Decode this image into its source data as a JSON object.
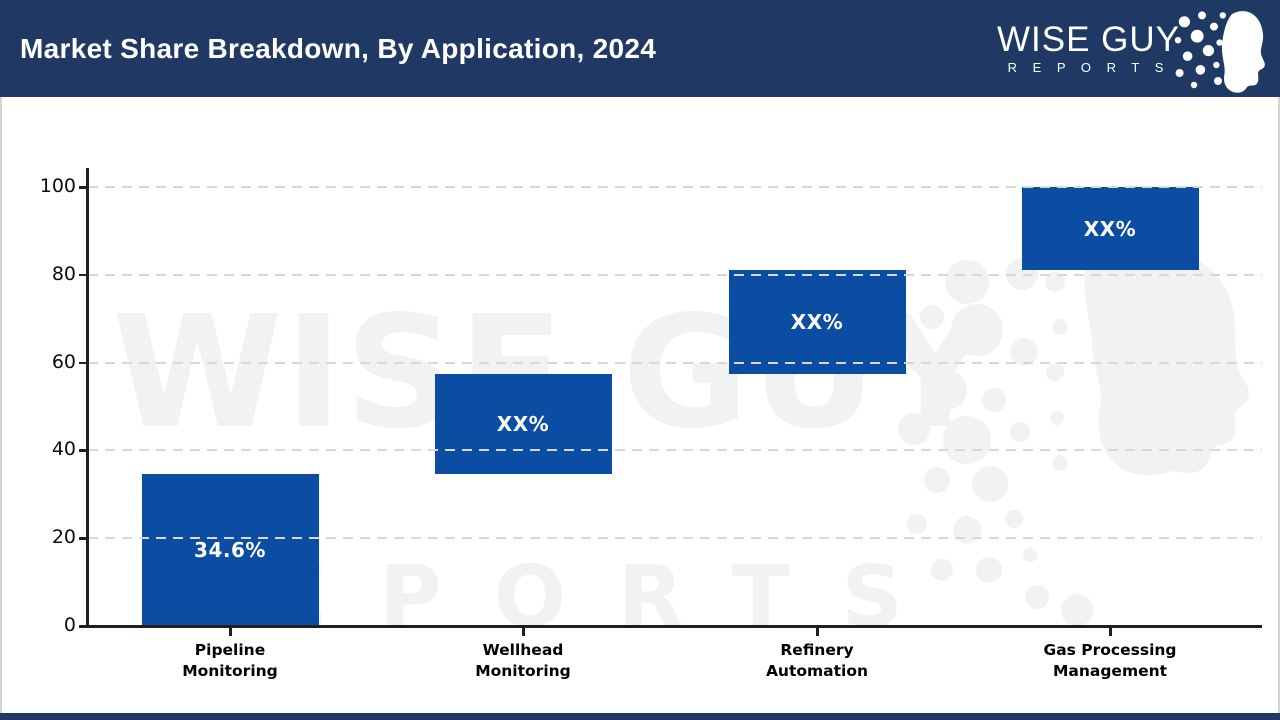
{
  "header": {
    "title": "Market Share Breakdown, By Application, 2024",
    "logo": {
      "name": "WISE GUY",
      "tagline": "R E P O R T S"
    }
  },
  "watermark": {
    "line1": "WISE GUY",
    "line2": "REPORTS"
  },
  "chart_data": {
    "type": "bar",
    "subtype": "waterfall",
    "title": "Market Share Breakdown, By Application, 2024",
    "categories": [
      {
        "name": "Pipeline Monitoring",
        "label_lines": [
          "Pipeline",
          "Monitoring"
        ],
        "start": 0,
        "end": 34.6,
        "bar_label": "34.6%"
      },
      {
        "name": "Wellhead Monitoring",
        "label_lines": [
          "Wellhead",
          "Monitoring"
        ],
        "start": 34.6,
        "end": 57.5,
        "bar_label": "XX%"
      },
      {
        "name": "Refinery Automation",
        "label_lines": [
          "Refinery",
          "Automation"
        ],
        "start": 57.5,
        "end": 81,
        "bar_label": "XX%"
      },
      {
        "name": "Gas Processing Management",
        "label_lines": [
          "Gas Processing",
          "Management"
        ],
        "start": 81,
        "end": 100,
        "bar_label": "XX%"
      }
    ],
    "ylim": [
      0,
      100
    ],
    "yticks": [
      "0",
      "20",
      "40",
      "60",
      "80",
      "100"
    ],
    "xlabel": "",
    "ylabel": "",
    "grid": "horizontal-dashed",
    "legend": false,
    "bar_color": "#0b4da2",
    "bar_label_color": "#ffffff"
  },
  "colors": {
    "header_bg": "#203864",
    "footer_bg": "#203864",
    "bar": "#0b4da2",
    "grid": "#d8d8d8",
    "axis": "#1f1f1f",
    "watermark": "#f2f2f4",
    "panel_border": "#d4d4d4"
  }
}
